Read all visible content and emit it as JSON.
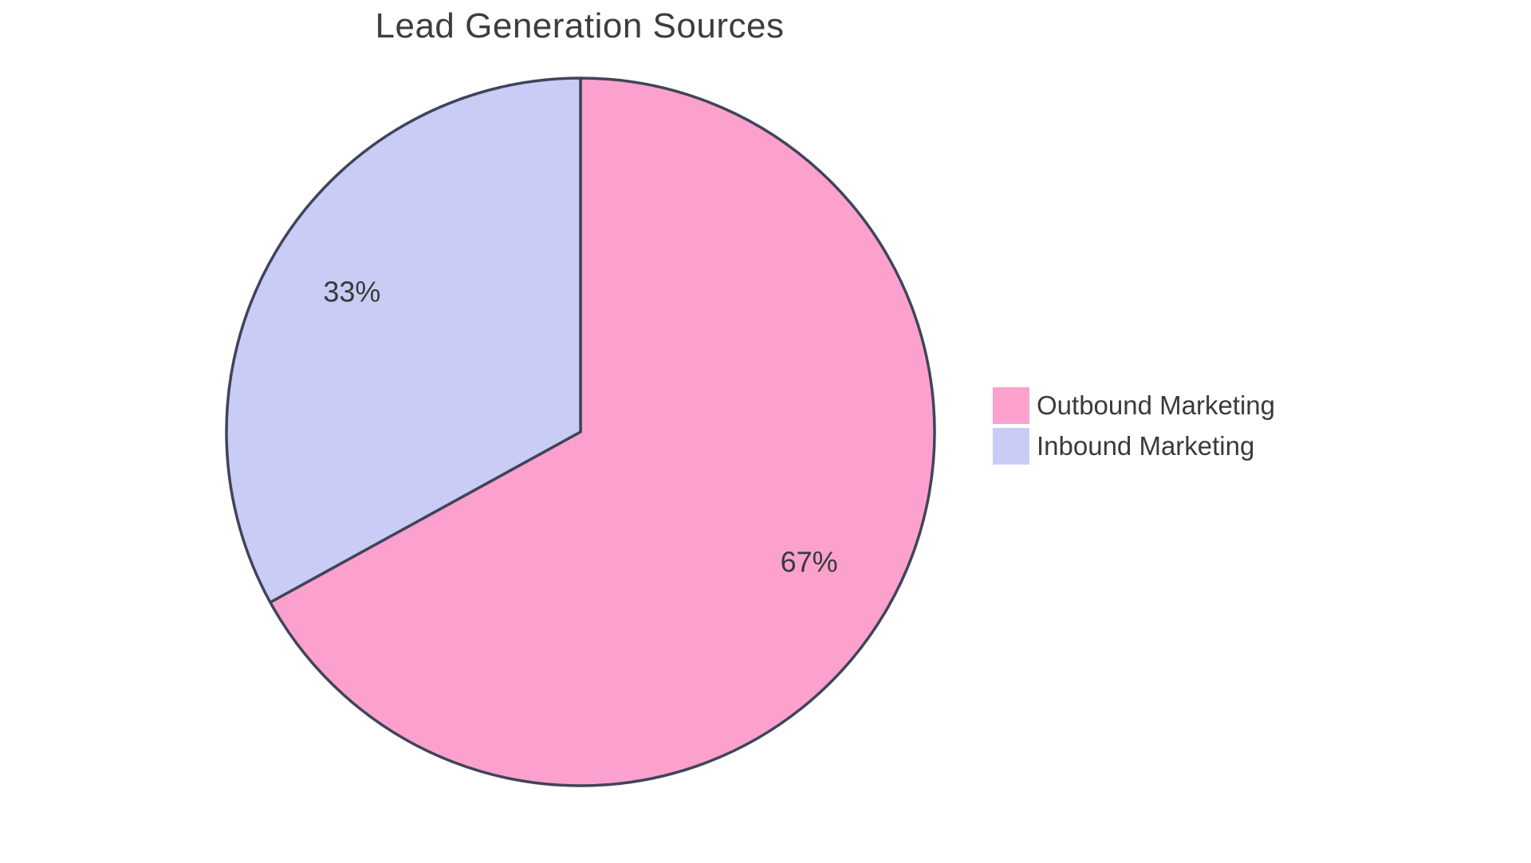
{
  "chart": {
    "colors": {
      "background": "#FFFFFF",
      "stroke": "#404459",
      "title_text": "#3D3D3D",
      "label_text": "#3A3A3A"
    }
  },
  "chart_data": {
    "type": "pie",
    "title": "Lead Generation Sources",
    "legend_position": "right",
    "start_angle_deg": 0,
    "direction": "clockwise",
    "slices": [
      {
        "label": "Outbound Marketing",
        "value": 67,
        "percent_label": "67%",
        "color": "#FCA1CE"
      },
      {
        "label": "Inbound Marketing",
        "value": 33,
        "percent_label": "33%",
        "color": "#C9CCF4"
      }
    ]
  }
}
